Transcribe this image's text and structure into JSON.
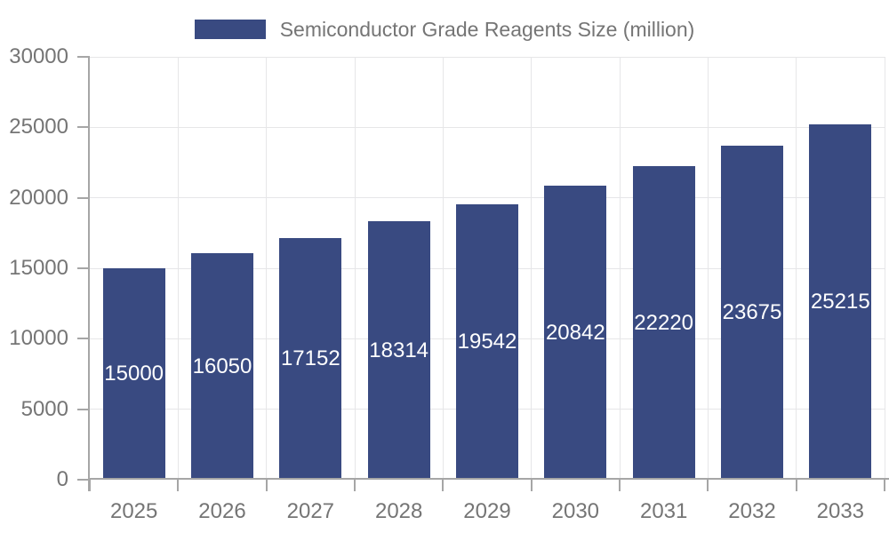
{
  "chart_data": {
    "type": "bar",
    "title": "Semiconductor Grade Reagents Size (million)",
    "legend": {
      "position": "top",
      "entries": [
        "Semiconductor Grade Reagents Size (million)"
      ]
    },
    "categories": [
      "2025",
      "2026",
      "2027",
      "2028",
      "2029",
      "2030",
      "2031",
      "2032",
      "2033"
    ],
    "series": [
      {
        "name": "Semiconductor Grade Reagents Size (million)",
        "values": [
          15000,
          16050,
          17152,
          18314,
          19542,
          20842,
          22220,
          23675,
          25215
        ]
      }
    ],
    "value_labels": [
      "15000",
      "16050",
      "17152",
      "18314",
      "19542",
      "20842",
      "22220",
      "23675",
      "25215"
    ],
    "xlabel": "",
    "ylabel": "",
    "ylim": [
      0,
      30000
    ],
    "yticks": [
      "0",
      "5000",
      "10000",
      "15000",
      "20000",
      "25000",
      "30000"
    ],
    "grid": true,
    "colors": {
      "bar": "#394A81",
      "bar_label": "#FFFFFF",
      "axis": "#A6A6A6",
      "grid": "#E6E6E8",
      "tick_label": "#757575",
      "legend_label": "#757575",
      "background": "#FFFFFF"
    }
  }
}
